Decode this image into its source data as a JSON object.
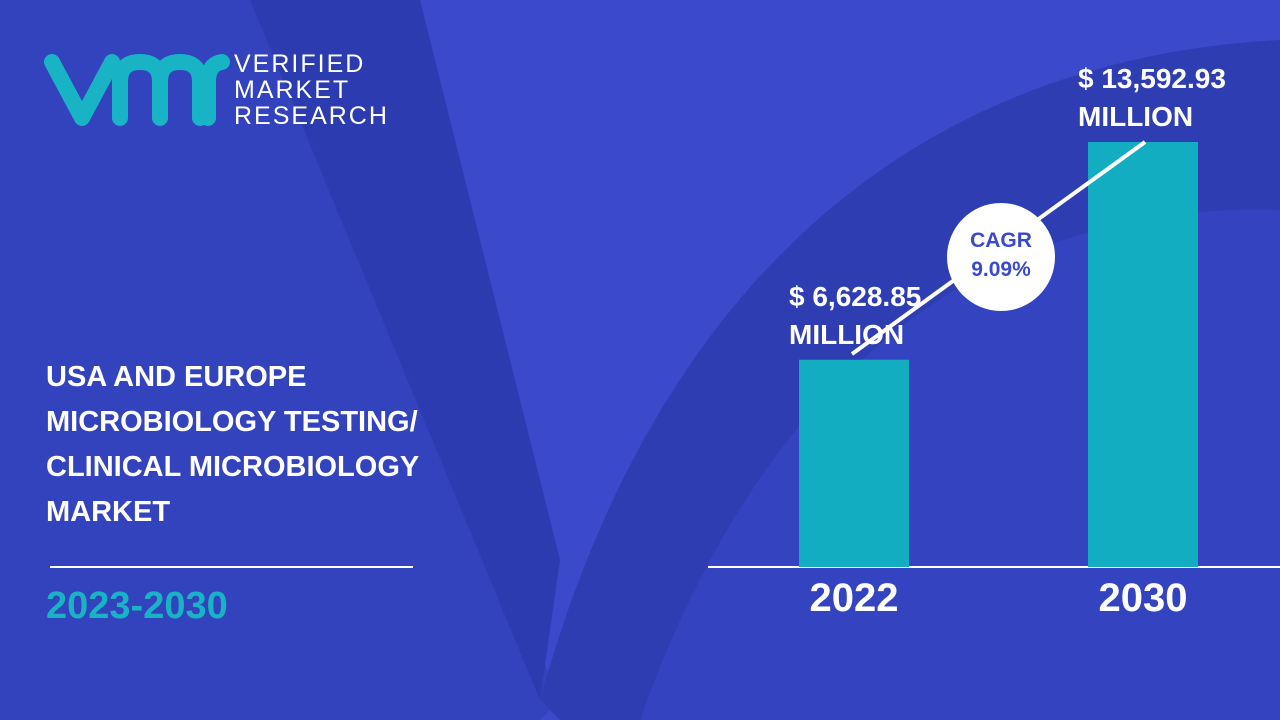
{
  "logo": {
    "lines": [
      "VERIFIED",
      "MARKET",
      "RESEARCH"
    ]
  },
  "chart_data": {
    "type": "bar",
    "title": "USA AND EUROPE MICROBIOLOGY TESTING/ CLINICAL MICROBIOLOGY MARKET",
    "subtitle": "2023-2030",
    "categories": [
      "2022",
      "2030"
    ],
    "values": [
      6628.85,
      13592.93
    ],
    "value_labels": [
      "$ 6,628.85 MILLION",
      "$ 13,592.93 MILLION"
    ],
    "color": "#12adc1",
    "annotations": [
      "CAGR",
      "9.09%"
    ]
  }
}
